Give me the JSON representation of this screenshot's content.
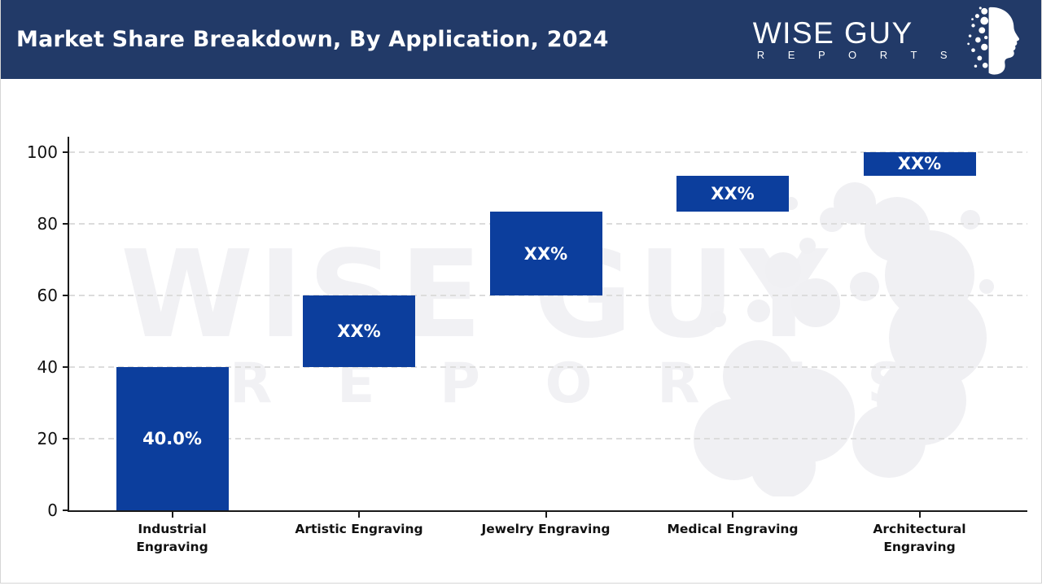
{
  "page": {
    "background": "#ffffff",
    "border_color": "#d6d6d6"
  },
  "header": {
    "background": "#223a68",
    "title": "Market Share Breakdown, By Application, 2024",
    "title_color": "#ffffff",
    "logo": {
      "primary": "WISE GUY",
      "secondary": "R E P O R T S",
      "color": "#ffffff"
    }
  },
  "watermark": {
    "line1": "WISE GUY",
    "line2": "R E P O R T S",
    "color": "#f1f1f4"
  },
  "chart_data": {
    "type": "bar",
    "subtype": "waterfall",
    "title": "Market Share Breakdown, By Application, 2024",
    "xlabel": "",
    "ylabel": "",
    "ylim": [
      0,
      100
    ],
    "yticks": [
      0,
      20,
      40,
      60,
      80,
      100
    ],
    "grid": true,
    "gridline_style": "dashed",
    "gridline_color": "#dcdcdc",
    "axis_color": "#1a1a1a",
    "bar_color": "#0c3e9d",
    "bar_label_color": "#ffffff",
    "categories": [
      "Industrial Engraving",
      "Artistic Engraving",
      "Jewelry Engraving",
      "Medical Engraving",
      "Architectural Engraving"
    ],
    "segments": [
      {
        "category": "Industrial Engraving",
        "label_lines": "Industrial\nEngraving",
        "start": 0,
        "end": 40,
        "value": 40,
        "value_label": "40.0%"
      },
      {
        "category": "Artistic Engraving",
        "label_lines": "Artistic Engraving",
        "start": 40,
        "end": 60,
        "value": 20,
        "value_label": "XX%"
      },
      {
        "category": "Jewelry Engraving",
        "label_lines": "Jewelry Engraving",
        "start": 60,
        "end": 83.3,
        "value": 23.3,
        "value_label": "XX%"
      },
      {
        "category": "Medical Engraving",
        "label_lines": "Medical Engraving",
        "start": 83.3,
        "end": 93.5,
        "value": 10.2,
        "value_label": "XX%"
      },
      {
        "category": "Architectural Engraving",
        "label_lines": "Architectural\nEngraving",
        "start": 93.5,
        "end": 100,
        "value": 6.5,
        "value_label": "XX%"
      }
    ]
  }
}
